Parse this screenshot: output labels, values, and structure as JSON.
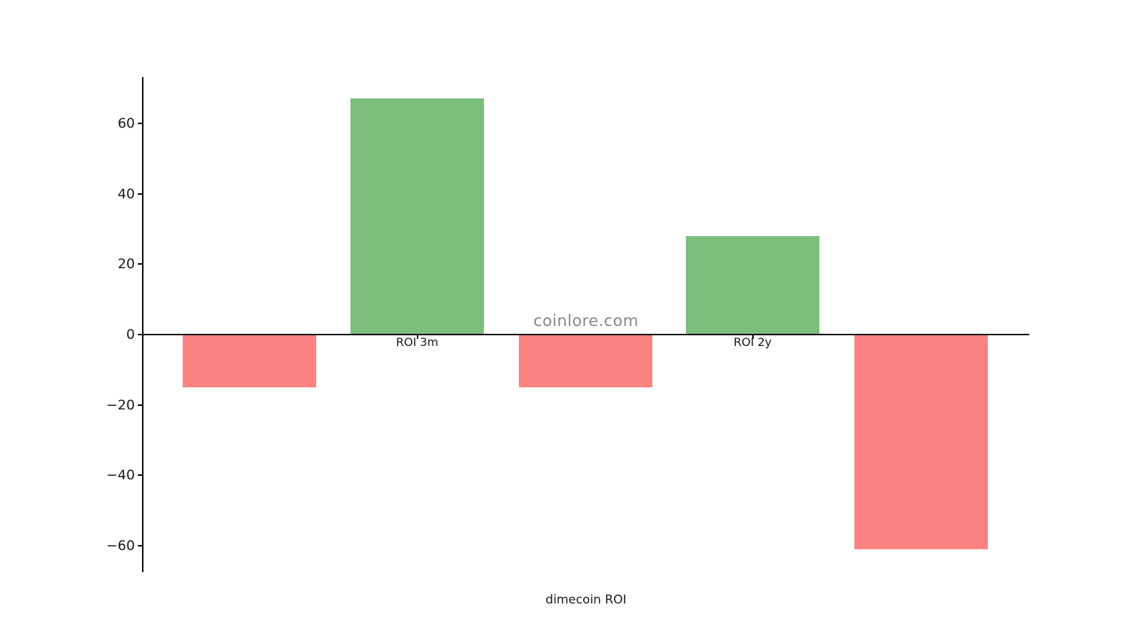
{
  "watermark": "coinlore.com",
  "chart_data": {
    "type": "bar",
    "title": "",
    "xlabel": "dimecoin ROI",
    "ylabel": "",
    "categories": [
      "",
      "ROI 3m",
      "",
      "ROI 2y",
      ""
    ],
    "values": [
      -15,
      67,
      -15,
      28,
      -61
    ],
    "yticks": [
      60,
      40,
      20,
      0,
      -20,
      -40,
      -60
    ],
    "ylim": [
      -67.5,
      73.2
    ],
    "grid": false,
    "legend": "none",
    "colors": {
      "positive_bar": "#7cbe7c",
      "negative_bar": "#fc8181",
      "axis": "#000000",
      "tick_text": "#1a1a1a",
      "watermark": "#888888"
    }
  }
}
